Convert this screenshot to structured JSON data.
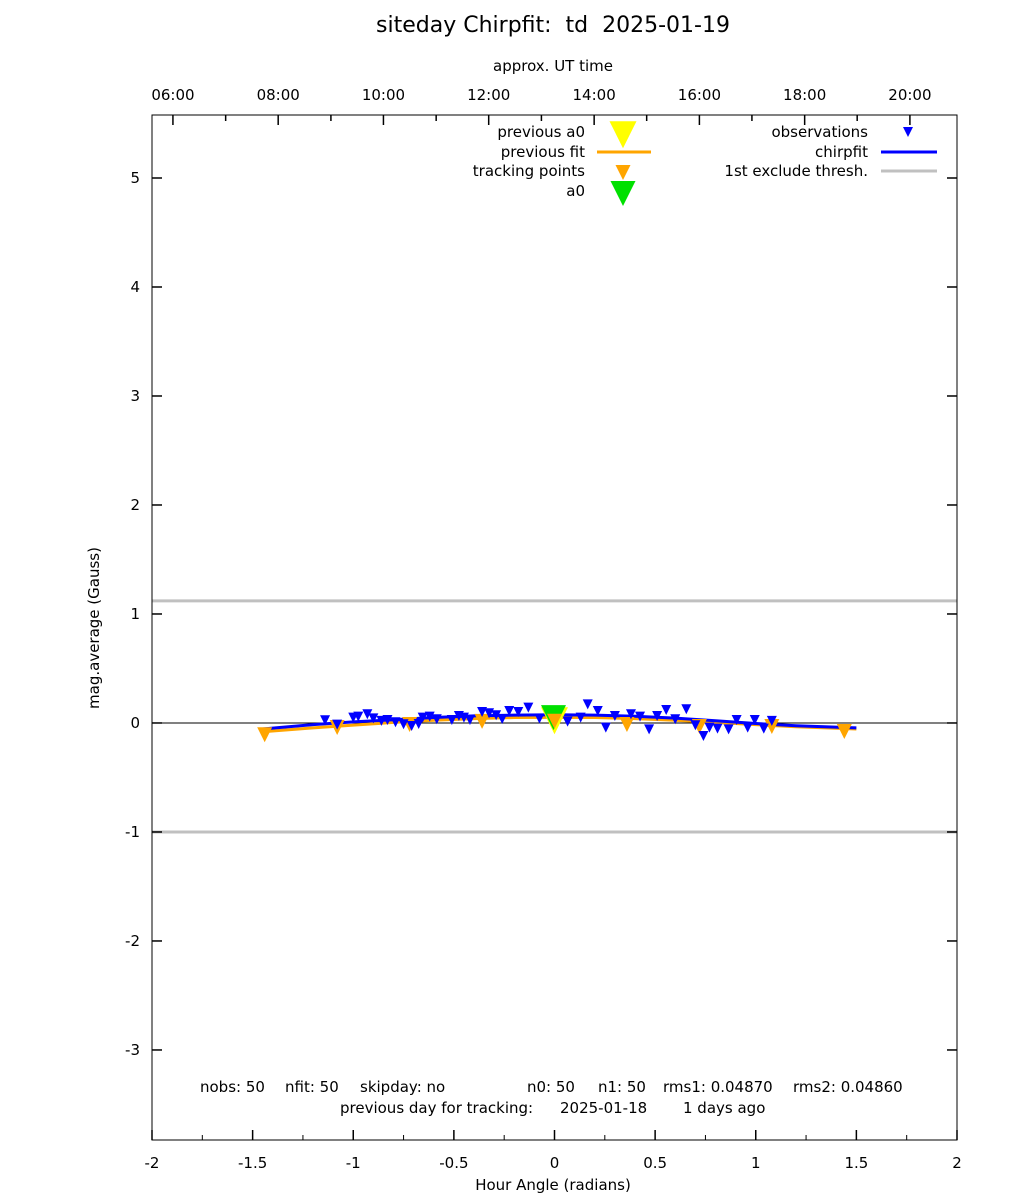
{
  "chart_data": {
    "type": "scatter",
    "title": "siteday Chirpfit:  td  2025-01-19",
    "x2label": "approx. UT time",
    "xlabel": "Hour Angle (radians)",
    "ylabel": "mag.average (Gauss)",
    "xlim": [
      -2,
      2
    ],
    "ylim": [
      -3.826,
      5.578
    ],
    "grid": false,
    "x_ticks": [
      -2,
      -1.5,
      -1,
      -0.5,
      0,
      0.5,
      1,
      1.5,
      2
    ],
    "x_tick_labels": [
      "-2",
      "-1.5",
      "-1",
      "-0.5",
      "0",
      "0.5",
      "1",
      "1.5",
      "2"
    ],
    "x_minor_step": 0.25,
    "y_ticks": [
      -3,
      -2,
      -1,
      0,
      1,
      2,
      3,
      4,
      5
    ],
    "y_tick_labels": [
      "-3",
      "-2",
      "-1",
      "0",
      "1",
      "2",
      "3",
      "4",
      "5"
    ],
    "x2_ticks": [
      {
        "pos": -1.896,
        "label": "06:00"
      },
      {
        "pos": -1.634,
        "label": ""
      },
      {
        "pos": -1.373,
        "label": "08:00"
      },
      {
        "pos": -1.111,
        "label": ""
      },
      {
        "pos": -0.85,
        "label": "10:00"
      },
      {
        "pos": -0.588,
        "label": ""
      },
      {
        "pos": -0.327,
        "label": "12:00"
      },
      {
        "pos": -0.065,
        "label": ""
      },
      {
        "pos": 0.197,
        "label": "14:00"
      },
      {
        "pos": 0.458,
        "label": ""
      },
      {
        "pos": 0.72,
        "label": "16:00"
      },
      {
        "pos": 0.981,
        "label": ""
      },
      {
        "pos": 1.243,
        "label": "18:00"
      },
      {
        "pos": 1.504,
        "label": ""
      },
      {
        "pos": 1.766,
        "label": "20:00"
      }
    ],
    "zero_line": 0,
    "thresholds": [
      1.12,
      -1.0
    ],
    "colors": {
      "blue": "#0000ff",
      "orange": "#ffa500",
      "yellow": "#ffff00",
      "green": "#00e000",
      "gray": "#c0c0c0",
      "black": "#000000"
    },
    "legend": {
      "previous_a0": "previous a0",
      "previous_fit": "previous fit",
      "tracking_points": "tracking points",
      "a0": "a0",
      "observations": "observations",
      "chirpfit": "chirpfit",
      "exclude": "1st exclude thresh."
    },
    "series": {
      "observations": {
        "marker": "triangle-down",
        "size": 10,
        "color": "#0000ff",
        "points": [
          [
            -1.14,
            0.034
          ],
          [
            -1.08,
            -0.006
          ],
          [
            -1.0,
            0.058
          ],
          [
            -0.975,
            0.067
          ],
          [
            -0.93,
            0.089
          ],
          [
            -0.9,
            0.052
          ],
          [
            -0.86,
            0.028
          ],
          [
            -0.83,
            0.037
          ],
          [
            -0.79,
            0.016
          ],
          [
            -0.75,
            -0.003
          ],
          [
            -0.71,
            -0.018
          ],
          [
            -0.675,
            0.0
          ],
          [
            -0.655,
            0.058
          ],
          [
            -0.62,
            0.067
          ],
          [
            -0.585,
            0.043
          ],
          [
            -0.51,
            0.037
          ],
          [
            -0.475,
            0.073
          ],
          [
            -0.45,
            0.058
          ],
          [
            -0.42,
            0.037
          ],
          [
            -0.36,
            0.11
          ],
          [
            -0.325,
            0.098
          ],
          [
            -0.29,
            0.08
          ],
          [
            -0.26,
            0.046
          ],
          [
            -0.225,
            0.119
          ],
          [
            -0.18,
            0.11
          ],
          [
            -0.13,
            0.15
          ],
          [
            -0.075,
            0.049
          ],
          [
            0.065,
            0.022
          ],
          [
            0.13,
            0.058
          ],
          [
            0.165,
            0.18
          ],
          [
            0.215,
            0.119
          ],
          [
            0.255,
            -0.034
          ],
          [
            0.3,
            0.073
          ],
          [
            0.38,
            0.089
          ],
          [
            0.425,
            0.067
          ],
          [
            0.47,
            -0.049
          ],
          [
            0.51,
            0.073
          ],
          [
            0.555,
            0.128
          ],
          [
            0.6,
            0.043
          ],
          [
            0.655,
            0.135
          ],
          [
            0.7,
            -0.012
          ],
          [
            0.74,
            -0.11
          ],
          [
            0.77,
            -0.034
          ],
          [
            0.81,
            -0.043
          ],
          [
            0.865,
            -0.049
          ],
          [
            0.905,
            0.037
          ],
          [
            0.96,
            -0.034
          ],
          [
            0.995,
            0.037
          ],
          [
            1.04,
            -0.043
          ],
          [
            1.08,
            0.028
          ]
        ]
      },
      "tracking_points": {
        "marker": "triangle-down",
        "size": 15,
        "color": "#ffa500",
        "points": [
          [
            -1.44,
            -0.094
          ],
          [
            -1.08,
            -0.028
          ],
          [
            -0.72,
            0.0
          ],
          [
            -0.36,
            0.028
          ],
          [
            0.0,
            0.03
          ],
          [
            0.36,
            0.0
          ],
          [
            0.72,
            -0.018
          ],
          [
            1.08,
            -0.018
          ],
          [
            1.44,
            -0.064
          ]
        ]
      },
      "previous_a0": {
        "marker": "triangle-down",
        "size": 27,
        "color": "#ffff00",
        "points": [
          [
            0.0,
            0.045
          ]
        ]
      },
      "a0": {
        "marker": "triangle-down",
        "size": 25,
        "color": "#00e000",
        "points": [
          [
            -0.005,
            0.072
          ]
        ]
      },
      "chirpfit": {
        "type": "line",
        "width": 3,
        "color": "#0000ff",
        "points": [
          [
            -1.45,
            -0.055
          ],
          [
            -1.2,
            -0.015
          ],
          [
            -1.0,
            0.01
          ],
          [
            -0.8,
            0.03
          ],
          [
            -0.6,
            0.05
          ],
          [
            -0.4,
            0.065
          ],
          [
            -0.2,
            0.072
          ],
          [
            0.0,
            0.075
          ],
          [
            0.2,
            0.072
          ],
          [
            0.4,
            0.062
          ],
          [
            0.6,
            0.045
          ],
          [
            0.8,
            0.02
          ],
          [
            1.0,
            -0.005
          ],
          [
            1.2,
            -0.025
          ],
          [
            1.5,
            -0.045
          ]
        ]
      },
      "previous_fit": {
        "type": "line",
        "width": 3,
        "color": "#ffa500",
        "points": [
          [
            -1.45,
            -0.08
          ],
          [
            -1.2,
            -0.045
          ],
          [
            -1.0,
            -0.02
          ],
          [
            -0.8,
            0.005
          ],
          [
            -0.6,
            0.025
          ],
          [
            -0.4,
            0.04
          ],
          [
            -0.2,
            0.05
          ],
          [
            0.0,
            0.052
          ],
          [
            0.2,
            0.05
          ],
          [
            0.4,
            0.04
          ],
          [
            0.6,
            0.025
          ],
          [
            0.8,
            0.005
          ],
          [
            1.0,
            -0.015
          ],
          [
            1.2,
            -0.035
          ],
          [
            1.5,
            -0.055
          ]
        ]
      }
    },
    "stats": {
      "nobs": "nobs: 50",
      "nfit": "nfit: 50",
      "skipday": "skipday: no",
      "n0": "n0: 50",
      "n1": "n1: 50",
      "rms1": "rms1: 0.04870",
      "rms2": "rms2: 0.04860",
      "prev_label": "previous day for tracking:",
      "prev_date": "2025-01-18",
      "days_ago": "1 days ago"
    }
  }
}
